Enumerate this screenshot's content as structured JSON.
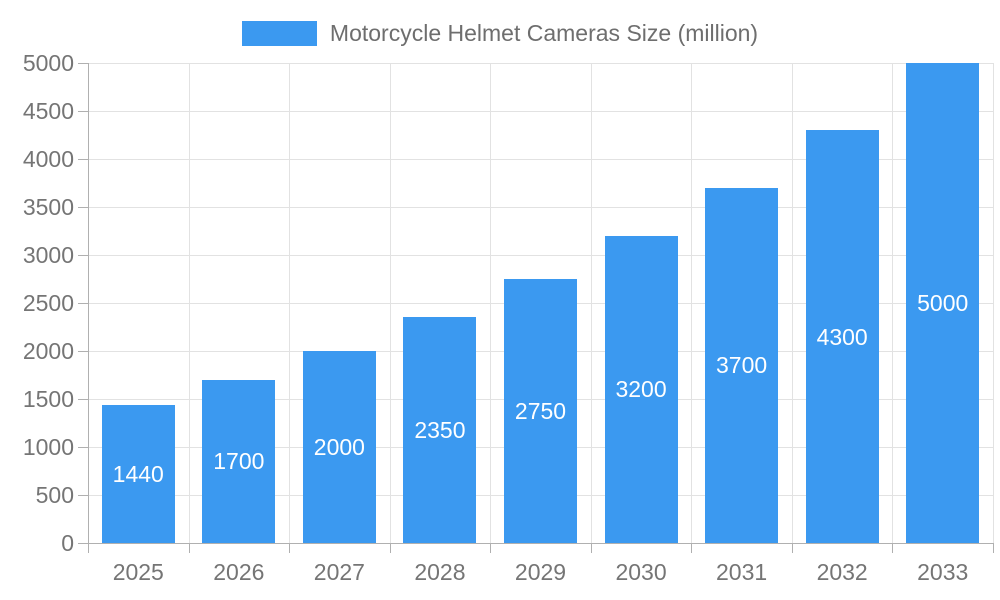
{
  "legend": {
    "label": "Motorcycle Helmet Cameras Size (million)"
  },
  "chart_data": {
    "type": "bar",
    "title": "",
    "xlabel": "",
    "ylabel": "",
    "categories": [
      "2025",
      "2026",
      "2027",
      "2028",
      "2029",
      "2030",
      "2031",
      "2032",
      "2033"
    ],
    "values": [
      1440,
      1700,
      2000,
      2350,
      2750,
      3200,
      3700,
      4300,
      5000
    ],
    "series_name": "Motorcycle Helmet Cameras Size (million)",
    "value_labels": [
      "1440",
      "1700",
      "2000",
      "2350",
      "2750",
      "3200",
      "3700",
      "4300",
      "5000"
    ],
    "ylim": [
      0,
      5000
    ],
    "yticks": [
      0,
      500,
      1000,
      1500,
      2000,
      2500,
      3000,
      3500,
      4000,
      4500,
      5000
    ],
    "grid": true,
    "legend_position": "top"
  },
  "colors": {
    "bar": "#3b99f0",
    "grid": "#e2e2e2",
    "axis": "#b0b0b0",
    "text": "#757575",
    "value_label": "#ffffff",
    "background": "#ffffff"
  }
}
